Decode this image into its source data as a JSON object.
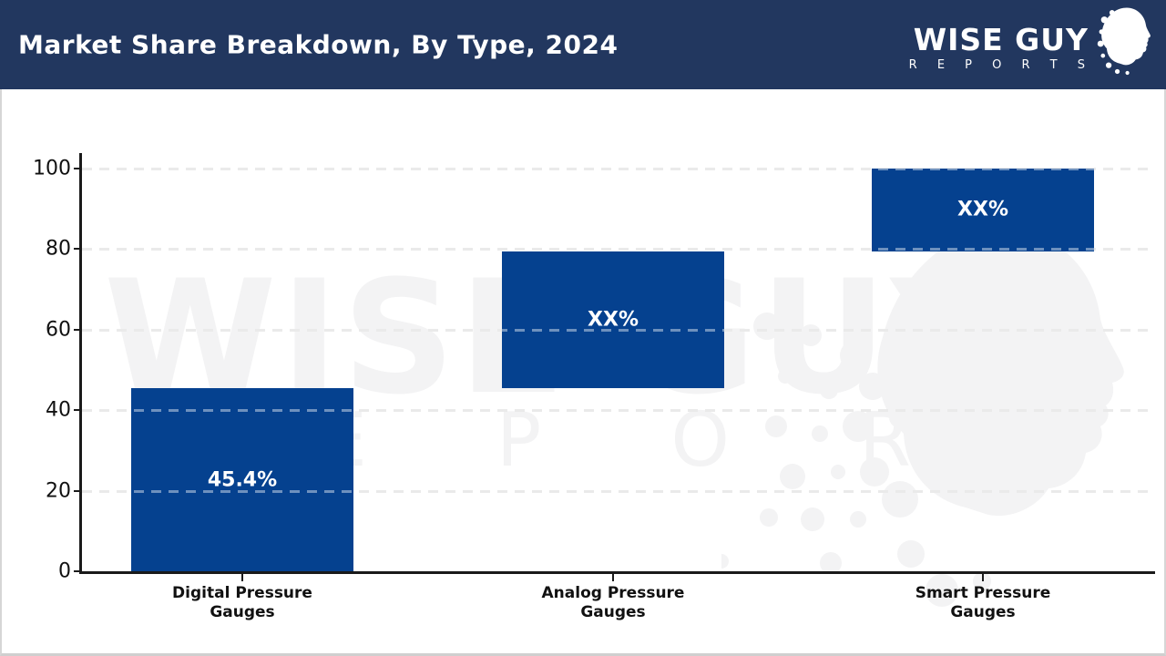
{
  "header": {
    "title": "Market Share Breakdown, By Type, 2024",
    "logo_line1": "WISE GUY",
    "logo_line2": "R E P O R T S"
  },
  "watermark": {
    "line1": "WISE GUY",
    "line2": "R E P O R T S"
  },
  "colors": {
    "header_bg": "#22375F",
    "bar_blue": "#05418F",
    "watermark_gray": "#F3F3F4",
    "gridline_gray": "#DADADA",
    "axis_black": "#1A1A1A",
    "bar_label_white": "#FFFFFF"
  },
  "chart_data": {
    "type": "bar",
    "subtype": "waterfall",
    "title": "Market Share Breakdown, By Type, 2024",
    "categories": [
      "Digital Pressure Gauges",
      "Analog Pressure Gauges",
      "Smart Pressure Gauges"
    ],
    "series": [
      {
        "name": "Market Share %",
        "segments": [
          {
            "category": "Digital Pressure Gauges",
            "start": 0,
            "end": 45.4,
            "label": "45.4%"
          },
          {
            "category": "Analog Pressure Gauges",
            "start": 45.4,
            "end": 79.5,
            "label": "XX%"
          },
          {
            "category": "Smart Pressure Gauges",
            "start": 79.5,
            "end": 100,
            "label": "XX%"
          }
        ]
      }
    ],
    "ylabel": "",
    "xlabel": "",
    "yticks": [
      0,
      20,
      40,
      60,
      80,
      100
    ],
    "ylim": [
      0,
      104
    ],
    "grid": true,
    "grid_style": "dashed",
    "legend": "none",
    "bar_color": "#05418F"
  }
}
